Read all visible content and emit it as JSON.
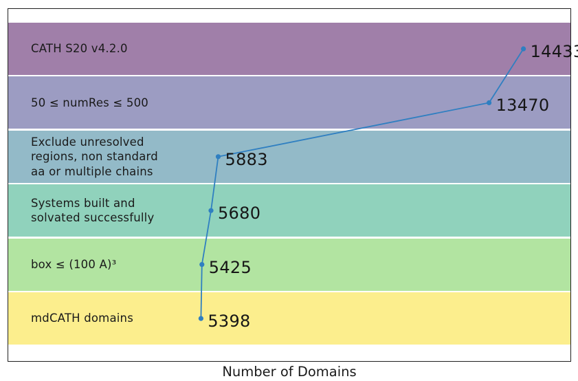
{
  "chart_data": {
    "type": "line",
    "subtype": "funnel-stage-bands",
    "title": "",
    "xlabel": "Number of Domains",
    "ylabel": "",
    "xlim": [
      0,
      15750
    ],
    "grid": false,
    "legend_position": "none",
    "marker": "circle",
    "line_color": "#2f7fc1",
    "value_label_color": "#161616",
    "band_text_color": "#1a1a1a",
    "frame_color": "#1f1f1f",
    "stages": [
      {
        "label": "CATH S20 v4.2.0",
        "value": 14433,
        "band_color": "#a07fa9"
      },
      {
        "label": "50 ≤ numRes ≤ 500",
        "value": 13470,
        "band_color": "#9c9cc2"
      },
      {
        "label": "Exclude unresolved\nregions, non standard\naa or multiple chains",
        "value": 5883,
        "band_color": "#93bac8"
      },
      {
        "label": "Systems built and\nsolvated successfully",
        "value": 5680,
        "band_color": "#90d2bc"
      },
      {
        "label": "box ≤ (100 A)³",
        "value": 5425,
        "band_color": "#b2e4a1"
      },
      {
        "label": "mdCATH domains",
        "value": 5398,
        "band_color": "#fcee8d"
      }
    ]
  }
}
